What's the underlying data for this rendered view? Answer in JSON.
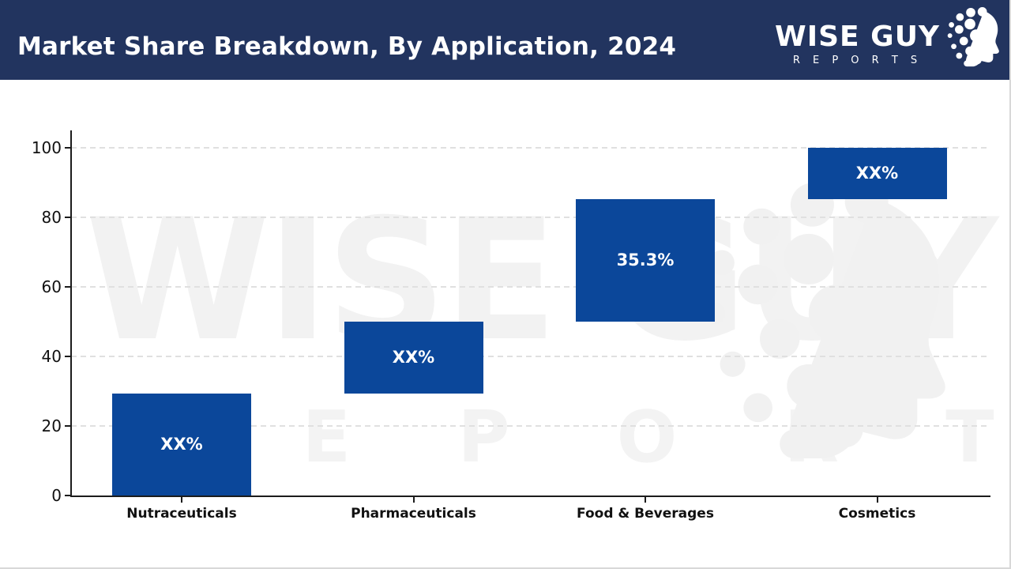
{
  "header": {
    "title": "Market Share Breakdown, By Application, 2024",
    "logo": {
      "name": "WISE GUY",
      "tagline": "R E P O R T S"
    }
  },
  "watermark": {
    "line1": "WISE GUY",
    "line2": "R E P O R T S"
  },
  "colors": {
    "header_bg": "#22345f",
    "bar": "#0b479a",
    "axis": "#1c1c1c",
    "gridline": "#e0e0e0",
    "bar_label": "#ffffff",
    "watermark": "#f2f2f2"
  },
  "chart_data": {
    "type": "bar",
    "variant": "floating-waterfall",
    "title": "Market Share Breakdown, By Application, 2024",
    "categories": [
      "Nutraceuticals",
      "Pharmaceuticals",
      "Food & Beverages",
      "Cosmetics"
    ],
    "bars": [
      {
        "category": "Nutraceuticals",
        "start": 0,
        "end": 29.4,
        "label": "XX%"
      },
      {
        "category": "Pharmaceuticals",
        "start": 29.4,
        "end": 50,
        "label": "XX%"
      },
      {
        "category": "Food & Beverages",
        "start": 50,
        "end": 85.3,
        "label": "35.3%"
      },
      {
        "category": "Cosmetics",
        "start": 85.3,
        "end": 100,
        "label": "XX%"
      }
    ],
    "yticks": [
      0,
      20,
      40,
      60,
      80,
      100
    ],
    "ylim": [
      0,
      105
    ],
    "xlabel": "",
    "ylabel": "",
    "grid": "horizontal-dashed",
    "legend": "none"
  }
}
